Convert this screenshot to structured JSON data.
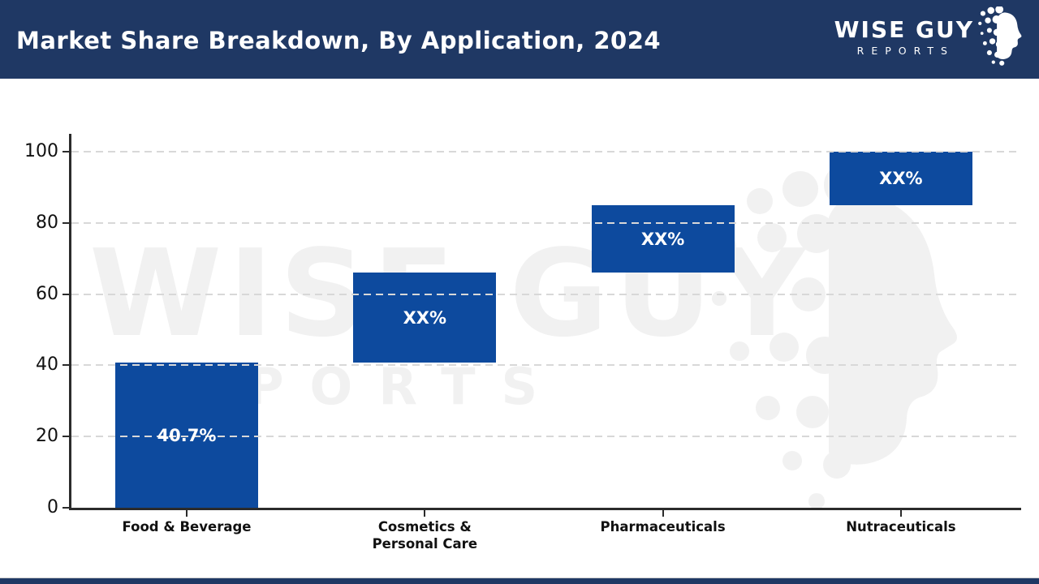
{
  "header": {
    "title": "Market Share Breakdown, By Application, 2024",
    "logo_line1": "WISE GUY",
    "logo_line2": "REPORTS"
  },
  "watermark": {
    "line1": "WISE GUY",
    "line2": "REPORTS"
  },
  "colors": {
    "header_bg": "#1f3864",
    "footer_bg": "#1f3864",
    "bar": "#0d4a9e",
    "grid": "#d8d8d8",
    "axis": "#2b2b2b",
    "watermark": "#f1f1f1",
    "title_text": "#ffffff",
    "bar_label_text": "#ffffff"
  },
  "chart_data": {
    "type": "bar",
    "subtype": "waterfall-stacked-percentage",
    "title": "Market Share Breakdown, By Application, 2024",
    "categories": [
      "Food & Beverage",
      "Cosmetics &\nPersonal Care",
      "Pharmaceuticals",
      "Nutraceuticals"
    ],
    "series": [
      {
        "name": "Market share (%)",
        "segments": [
          {
            "category": "Food & Beverage",
            "start": 0,
            "end": 40.7
          },
          {
            "category": "Cosmetics & Personal Care",
            "start": 40.7,
            "end": 66
          },
          {
            "category": "Pharmaceuticals",
            "start": 66,
            "end": 85
          },
          {
            "category": "Nutraceuticals",
            "start": 85,
            "end": 100
          }
        ]
      }
    ],
    "bar_labels": [
      "40.7%",
      "XX%",
      "XX%",
      "XX%"
    ],
    "xlabel": "",
    "ylabel": "",
    "ylim": [
      0,
      100
    ],
    "yticks": [
      0,
      20,
      40,
      60,
      80,
      100
    ],
    "grid": "horizontal-dashed",
    "legend": false
  }
}
